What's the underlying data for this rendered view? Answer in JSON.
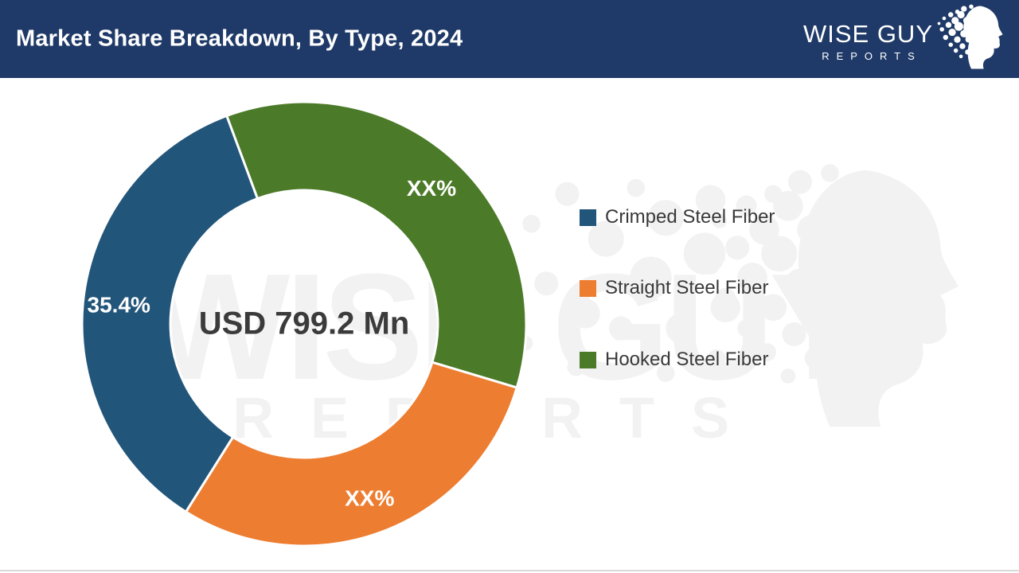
{
  "header": {
    "title": "Market Share Breakdown, By Type, 2024"
  },
  "logo": {
    "name_line": "WISE GUY",
    "sub_line": "REPORTS"
  },
  "watermark": {
    "name_line": "WISE GUY",
    "sub_line": "REPORTS"
  },
  "colors": {
    "header_bg": "#1f3a68",
    "crimped_blue": "#22557a",
    "straight_orange": "#ed7d31",
    "hooked_green": "#4b7a28",
    "center_text": "#3b3b3b",
    "watermark_gray": "#f2f2f2"
  },
  "chart_data": {
    "type": "pie",
    "subtype": "donut",
    "title": "Market Share Breakdown, By Type, 2024",
    "center_label": "USD 799.2 Mn",
    "donut_hole_ratio": 0.602,
    "start_angle_deg": -20.4,
    "segments": [
      {
        "key": "hooked",
        "label": "Hooked Steel Fiber",
        "display_label": "XX%",
        "value_pct": 35.3,
        "color": "#4b7a28"
      },
      {
        "key": "straight",
        "label": "Straight Steel Fiber",
        "display_label": "XX%",
        "value_pct": 29.3,
        "color": "#ed7d31"
      },
      {
        "key": "crimped",
        "label": "Crimped Steel Fiber",
        "display_label": "35.4%",
        "value_pct": 35.4,
        "color": "#22557a"
      }
    ],
    "legend_position": "right",
    "legend": [
      {
        "label": "Crimped Steel Fiber",
        "color": "#22557a"
      },
      {
        "label": "Straight Steel Fiber",
        "color": "#ed7d31"
      },
      {
        "label": "Hooked Steel Fiber",
        "color": "#4b7a28"
      }
    ]
  }
}
